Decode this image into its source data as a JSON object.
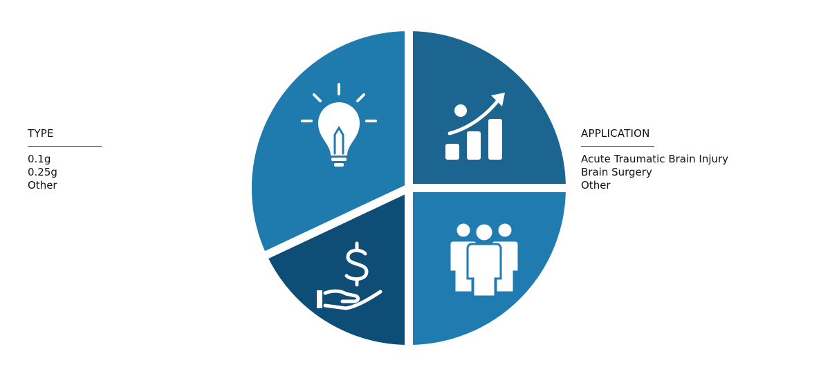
{
  "type_legend": {
    "title": "TYPE",
    "items": [
      "0.1g",
      "0.25g",
      "Other"
    ]
  },
  "application_legend": {
    "title": "APPLICATION",
    "items": [
      "Acute Traumatic Brain Injury",
      "Brain Surgery",
      "Other"
    ]
  },
  "pie": {
    "segments": [
      {
        "icon": "chart-growth-icon",
        "color": "#1c6591"
      },
      {
        "icon": "people-group-icon",
        "color": "#1f7bb0"
      },
      {
        "icon": "dollar-hand-icon",
        "color": "#0e4d76"
      },
      {
        "icon": "lightbulb-icon",
        "color": "#1f7aae"
      }
    ]
  }
}
